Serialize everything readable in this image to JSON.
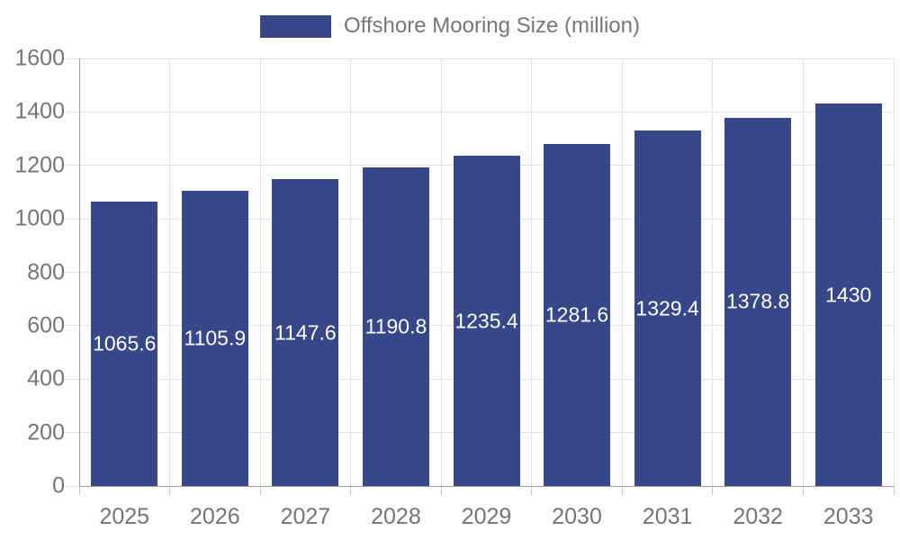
{
  "chart_data": {
    "type": "bar",
    "title": "Offshore Mooring Size (million)",
    "legend": [
      "Offshore Mooring Size (million)"
    ],
    "legend_position": "top",
    "categories": [
      "2025",
      "2026",
      "2027",
      "2028",
      "2029",
      "2030",
      "2031",
      "2032",
      "2033"
    ],
    "series": [
      {
        "name": "Offshore Mooring Size (million)",
        "values": [
          1065.6,
          1105.9,
          1147.6,
          1190.8,
          1235.4,
          1281.6,
          1329.4,
          1378.8,
          1430
        ],
        "value_labels": [
          "1065.6",
          "1105.9",
          "1147.6",
          "1190.8",
          "1235.4",
          "1281.6",
          "1329.4",
          "1378.8",
          "1430"
        ]
      }
    ],
    "xlabel": "",
    "ylabel": "",
    "ylim": [
      0,
      1600
    ],
    "ytick_step": 200,
    "ytick_labels": [
      "0",
      "200",
      "400",
      "600",
      "800",
      "1000",
      "1200",
      "1400",
      "1600"
    ],
    "grid": true
  },
  "colors": {
    "bar": "#364889",
    "bar_label": "#ffffff",
    "axis_label": "#757575",
    "legend_text": "#777777",
    "grid_line": "#e3e3e6",
    "axis_line": "#9e9e9e",
    "tick_line": "#c8c8c8",
    "background": "#ffffff"
  }
}
